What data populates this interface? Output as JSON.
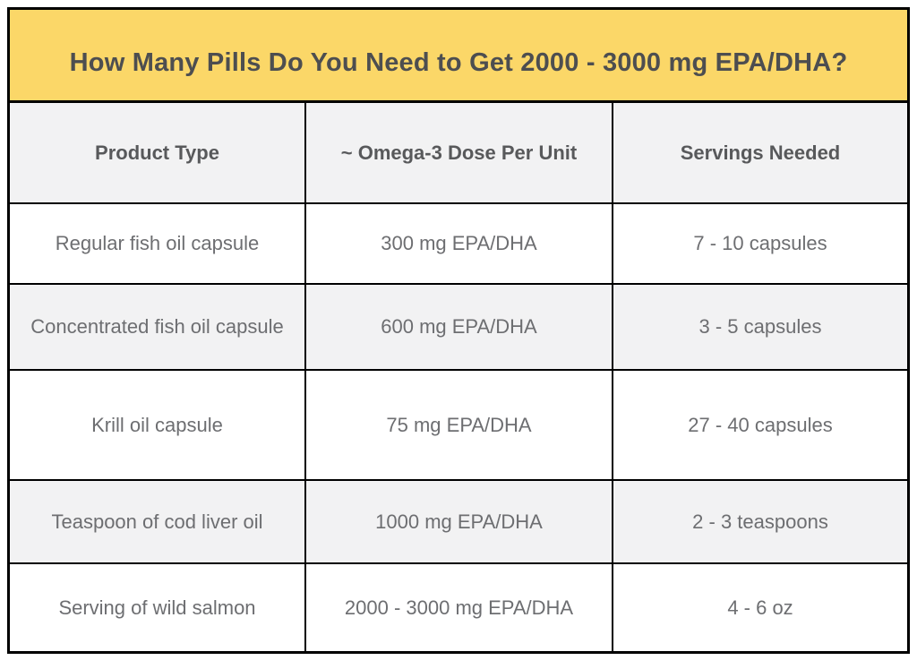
{
  "banner": {
    "title": "How Many Pills Do You Need to Get 2000 - 3000 mg EPA/DHA?"
  },
  "colors": {
    "banner_bg": "#FBD768",
    "header_row_bg": "#F2F2F3",
    "alt_row_bg": "#F2F2F3",
    "row_bg": "#FFFFFF",
    "border": "#000000",
    "title_text": "#4D4E50",
    "header_text": "#58595B",
    "cell_text": "#6D6E71"
  },
  "chart_data": {
    "type": "table",
    "title": "How Many Pills Do You Need to Get 2000 - 3000 mg EPA/DHA?",
    "columns": [
      "Product Type",
      "~ Omega-3 Dose Per Unit",
      "Servings Needed"
    ],
    "rows": [
      [
        "Regular fish oil capsule",
        "300 mg EPA/DHA",
        "7 - 10 capsules"
      ],
      [
        "Concentrated fish oil capsule",
        "600 mg EPA/DHA",
        "3 - 5 capsules"
      ],
      [
        "Krill oil capsule",
        "75 mg EPA/DHA",
        "27 - 40 capsules"
      ],
      [
        "Teaspoon of cod liver oil",
        "1000 mg EPA/DHA",
        "2 - 3 teaspoons"
      ],
      [
        "Serving of wild salmon",
        "2000 - 3000 mg EPA/DHA",
        "4 - 6 oz"
      ]
    ]
  }
}
